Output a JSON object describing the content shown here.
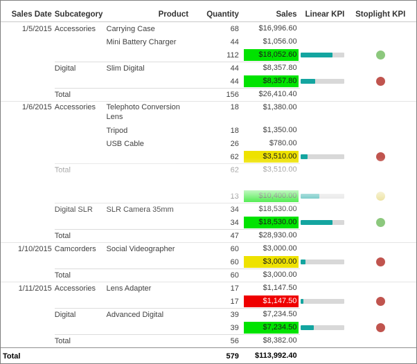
{
  "columns": [
    "Sales Date",
    "Subcategory",
    "Product",
    "Quantity",
    "Sales",
    "Linear KPI",
    "Stoplight KPI"
  ],
  "colors": {
    "kpi_green_bg": "#00e300",
    "kpi_yellow_bg": "#eee200",
    "kpi_red_bg": "#ef0000",
    "linear_kpi_fill": "#14a5a0",
    "linear_kpi_track": "#d8d8d8",
    "stoplight_green": "#8cc87d",
    "stoplight_yellow": "#e3d36b",
    "stoplight_red": "#c0544e"
  },
  "rows": [
    {
      "type": "detail",
      "date": "1/5/2015",
      "subcategory": "Accessories",
      "product": "Carrying Case",
      "quantity": "68",
      "sales": "$16,996.60",
      "top_line": "none"
    },
    {
      "type": "detail",
      "product": "Mini Battery Charger",
      "quantity": "44",
      "sales": "$1,056.00",
      "top_line": "none"
    },
    {
      "type": "subtotal",
      "quantity": "112",
      "sales": "$18,052.60",
      "sales_bg": "green",
      "kpi_pct": 72,
      "stoplight": "green",
      "top_line": "none"
    },
    {
      "type": "detail",
      "subcategory": "Digital",
      "product": "Slim Digital",
      "quantity": "44",
      "sales": "$8,357.80",
      "top_line": "inner"
    },
    {
      "type": "subtotal",
      "quantity": "44",
      "sales": "$8,357.80",
      "sales_bg": "green",
      "kpi_pct": 33,
      "stoplight": "red",
      "top_line": "none"
    },
    {
      "type": "group-total",
      "label": "Total",
      "quantity": "156",
      "sales": "$26,410.40",
      "top_line": "inner"
    },
    {
      "type": "detail",
      "date": "1/6/2015",
      "subcategory": "Accessories",
      "product": "Telephoto Conversion Lens",
      "quantity": "18",
      "sales": "$1,380.00",
      "top_line": "group",
      "two_line": true
    },
    {
      "type": "detail",
      "product": "Tripod",
      "quantity": "18",
      "sales": "$1,350.00",
      "top_line": "none"
    },
    {
      "type": "detail",
      "product": "USB Cable",
      "quantity": "26",
      "sales": "$780.00",
      "top_line": "none"
    },
    {
      "type": "subtotal",
      "quantity": "62",
      "sales": "$3,510.00",
      "sales_bg": "yellow",
      "kpi_pct": 16,
      "stoplight": "red",
      "top_line": "none"
    },
    {
      "type": "group-total",
      "label": "Total",
      "quantity": "62",
      "sales": "$3,510.00",
      "top_line": "inner",
      "opacity": 0.8
    },
    {
      "type": "faded",
      "top_line": "none",
      "opacity": 0.15
    },
    {
      "type": "subtotal",
      "quantity": "13",
      "sales": "$10,400.00",
      "sales_bg": "green",
      "kpi_pct": 42,
      "stoplight": "yellow",
      "top_line": "none",
      "opacity": 0.95
    },
    {
      "type": "detail",
      "subcategory": "Digital SLR",
      "product": "SLR Camera 35mm",
      "quantity": "34",
      "sales": "$18,530.00",
      "top_line": "inner"
    },
    {
      "type": "subtotal",
      "quantity": "34",
      "sales": "$18,530.00",
      "sales_bg": "green",
      "kpi_pct": 73,
      "stoplight": "green",
      "top_line": "none"
    },
    {
      "type": "group-total",
      "label": "Total",
      "quantity": "47",
      "sales": "$28,930.00",
      "top_line": "inner"
    },
    {
      "type": "detail",
      "date": "1/10/2015",
      "subcategory": "Camcorders",
      "product": "Social Videographer",
      "quantity": "60",
      "sales": "$3,000.00",
      "top_line": "group"
    },
    {
      "type": "subtotal",
      "quantity": "60",
      "sales": "$3,000.00",
      "sales_bg": "yellow",
      "kpi_pct": 11,
      "stoplight": "red",
      "top_line": "none"
    },
    {
      "type": "group-total",
      "label": "Total",
      "quantity": "60",
      "sales": "$3,000.00",
      "top_line": "inner"
    },
    {
      "type": "detail",
      "date": "1/11/2015",
      "subcategory": "Accessories",
      "product": "Lens Adapter",
      "quantity": "17",
      "sales": "$1,147.50",
      "top_line": "group"
    },
    {
      "type": "subtotal",
      "quantity": "17",
      "sales": "$1,147.50",
      "sales_bg": "red",
      "kpi_pct": 5,
      "stoplight": "red",
      "top_line": "none"
    },
    {
      "type": "detail",
      "subcategory": "Digital",
      "product": "Advanced Digital",
      "quantity": "39",
      "sales": "$7,234.50",
      "top_line": "inner"
    },
    {
      "type": "subtotal",
      "quantity": "39",
      "sales": "$7,234.50",
      "sales_bg": "green",
      "kpi_pct": 29,
      "stoplight": "red",
      "top_line": "none"
    },
    {
      "type": "group-total",
      "label": "Total",
      "quantity": "56",
      "sales": "$8,382.00",
      "top_line": "inner"
    },
    {
      "type": "grand-total",
      "label": "Total",
      "quantity": "579",
      "sales": "$113,992.40",
      "top_line": "grand"
    }
  ]
}
